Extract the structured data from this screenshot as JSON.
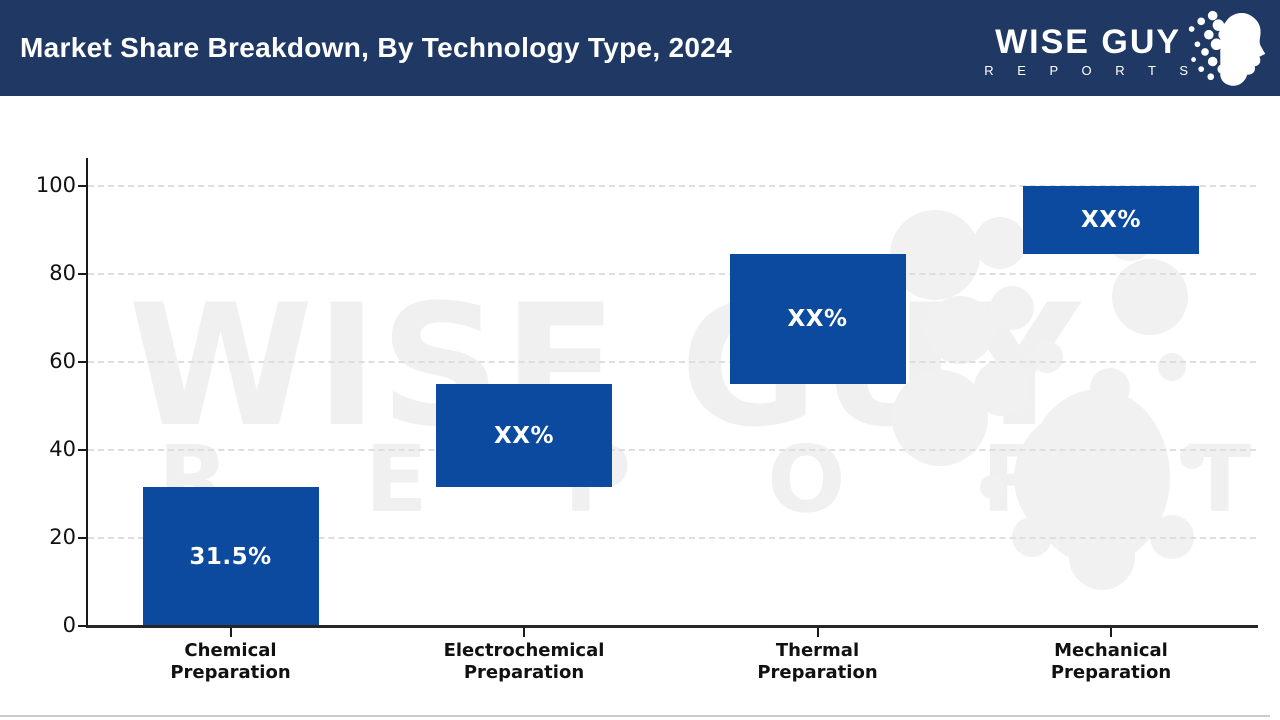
{
  "header": {
    "title": "Market Share Breakdown, By Technology Type, 2024",
    "logo": {
      "name_top": "WISE GUY",
      "name_bottom": "R E P O R T S"
    }
  },
  "watermark": {
    "line1": "WISE GUY",
    "line2": "R E P O R T S"
  },
  "chart_data": {
    "type": "bar",
    "subtype": "waterfall",
    "title": "Market Share Breakdown, By Technology Type, 2024",
    "categories": [
      "Chemical Preparation",
      "Electrochemical Preparation",
      "Thermal Preparation",
      "Mechanical Preparation"
    ],
    "segments": [
      {
        "category_lines": [
          "Chemical",
          "Preparation"
        ],
        "start": 0,
        "end": 31.5,
        "label": "31.5%"
      },
      {
        "category_lines": [
          "Electrochemical",
          "Preparation"
        ],
        "start": 31.5,
        "end": 55,
        "label": "XX%"
      },
      {
        "category_lines": [
          "Thermal",
          "Preparation"
        ],
        "start": 55,
        "end": 84.5,
        "label": "XX%"
      },
      {
        "category_lines": [
          "Mechanical",
          "Preparation"
        ],
        "start": 84.5,
        "end": 100,
        "label": "XX%"
      }
    ],
    "xlabel": "",
    "ylabel": "",
    "ylim": [
      0,
      100
    ],
    "yticks": [
      0,
      20,
      40,
      60,
      80,
      100
    ],
    "grid": "horizontal-dashed",
    "legend": "none"
  },
  "colors": {
    "header_bg": "#1f3864",
    "bar_fill": "#0b4a9e",
    "axis": "#1a1a1a",
    "gridline": "#dedede",
    "watermark": "#f0f0f0",
    "title_text": "#ffffff",
    "bar_label_text": "#ffffff"
  }
}
